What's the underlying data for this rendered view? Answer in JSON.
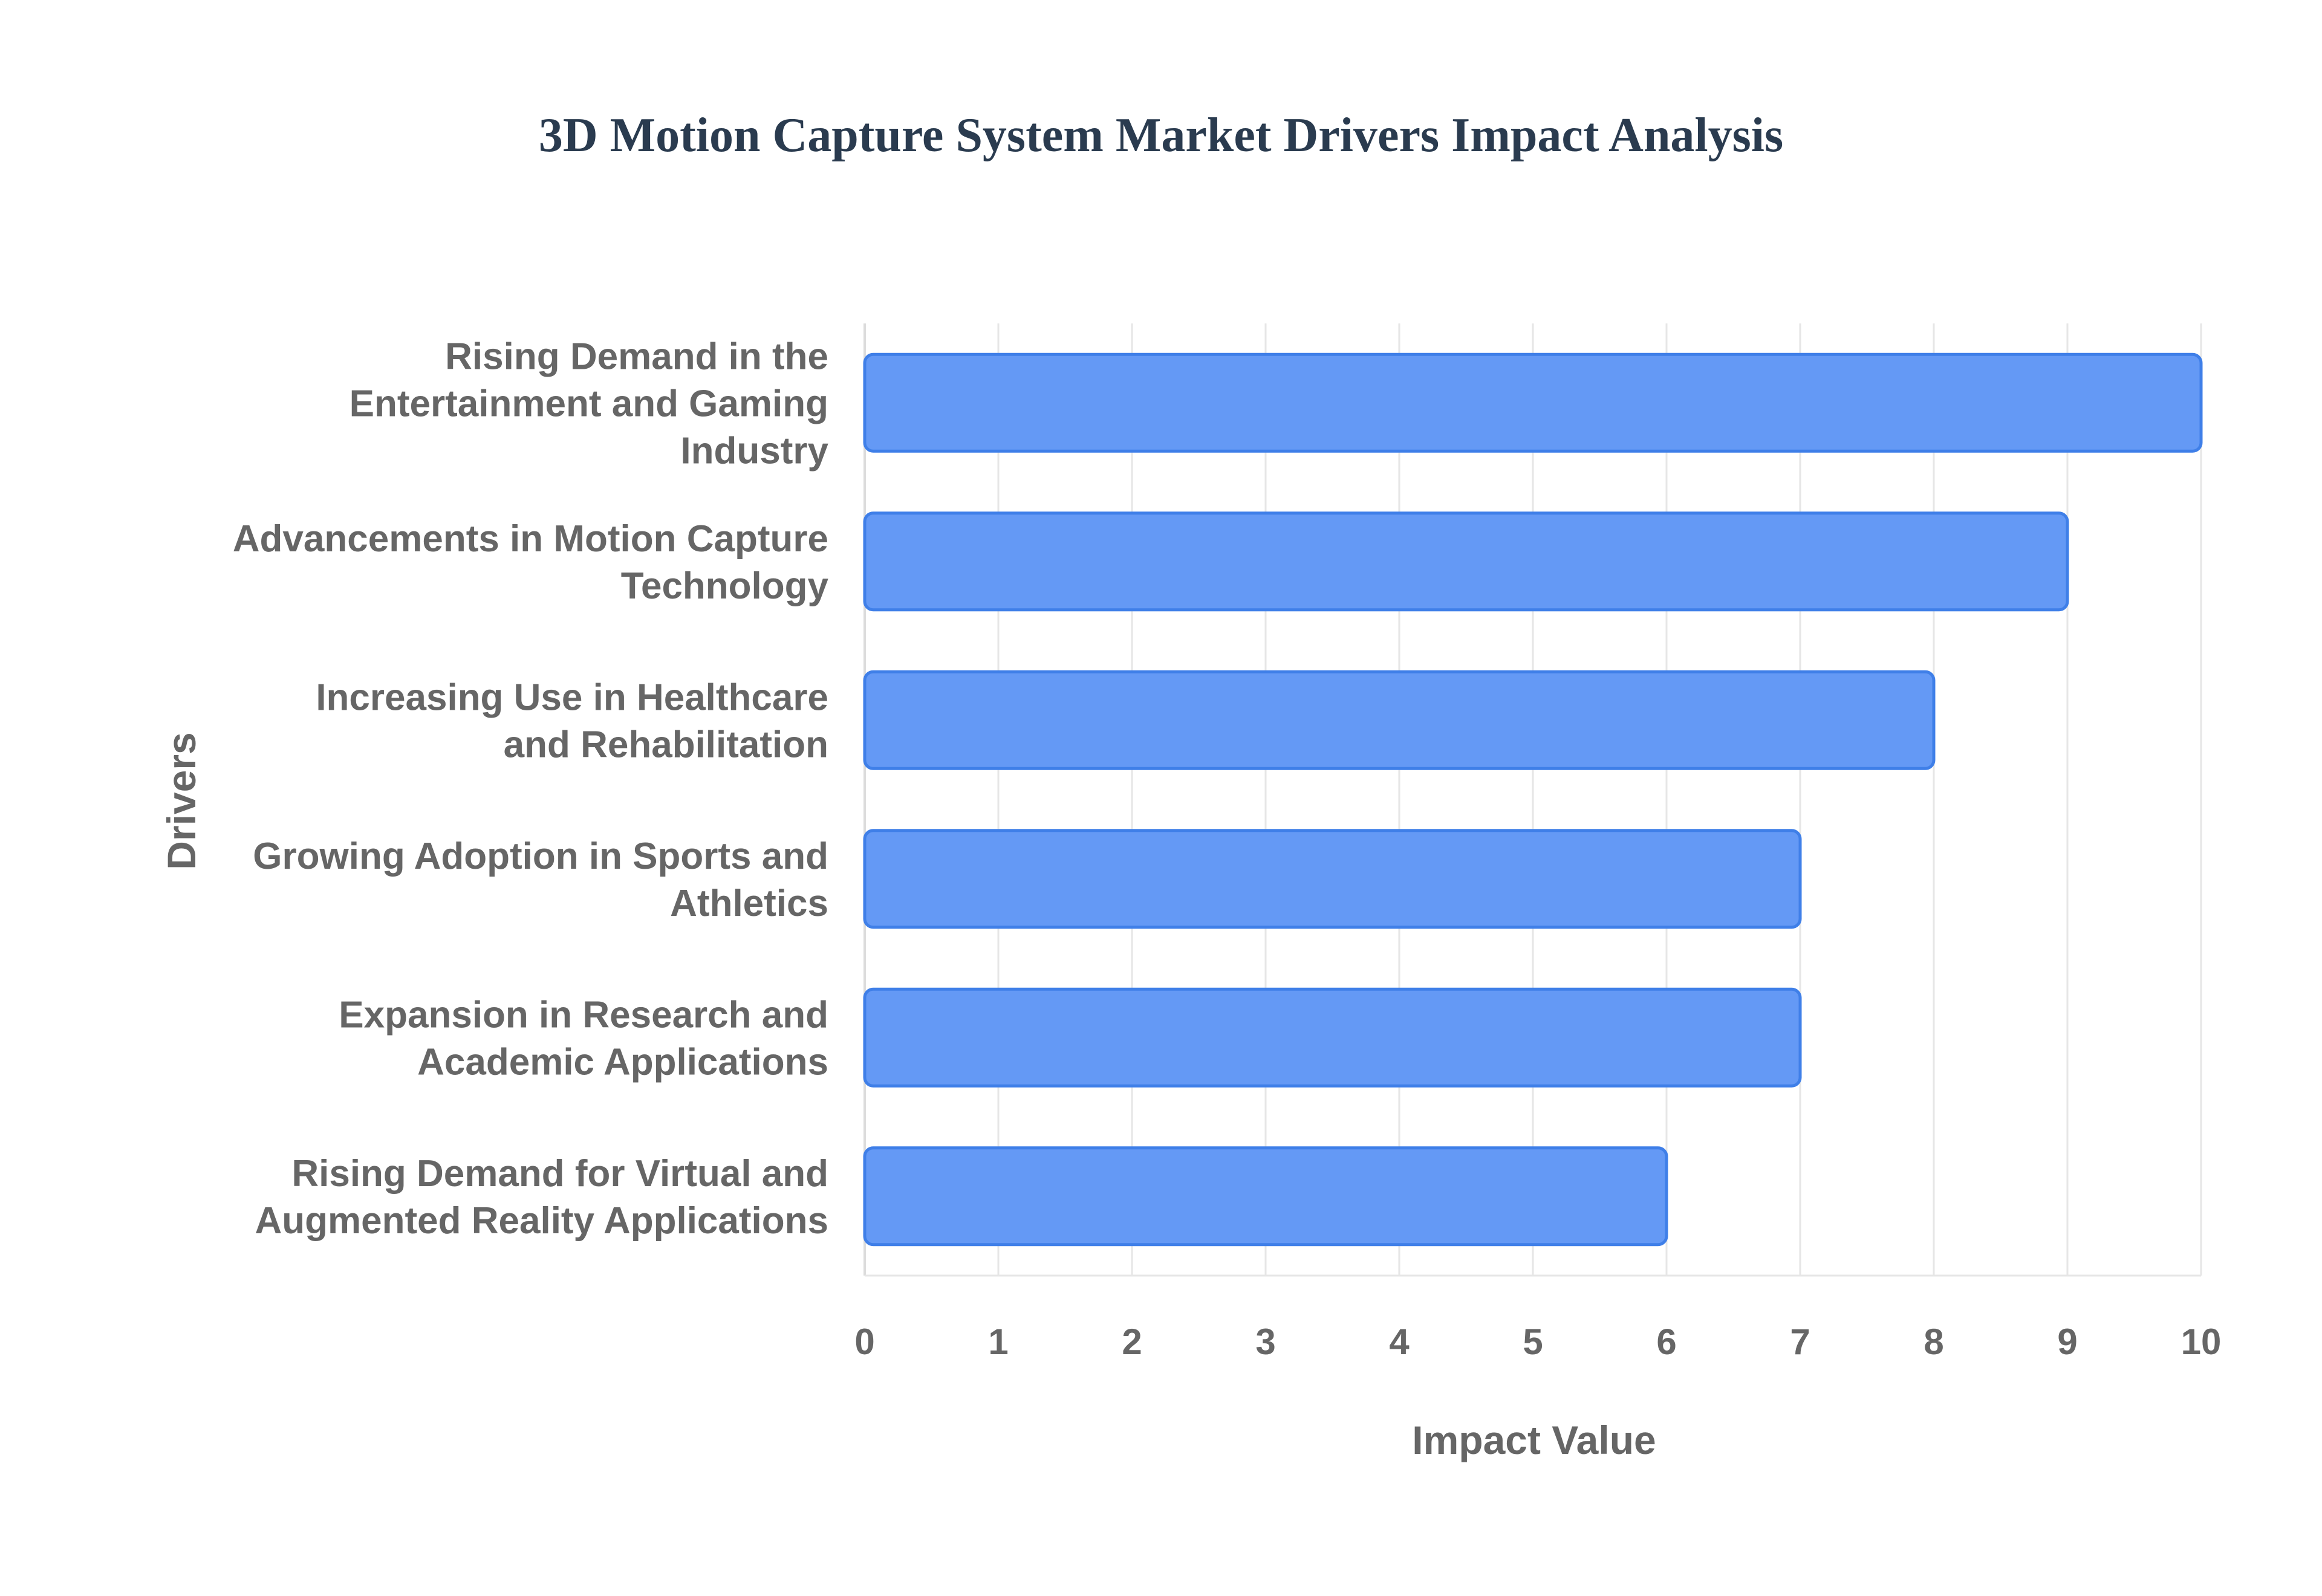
{
  "chart_data": {
    "type": "bar",
    "orientation": "horizontal",
    "title": "3D Motion Capture System Market Drivers Impact Analysis",
    "xlabel": "Impact Value",
    "ylabel": "Drivers",
    "xlim": [
      0,
      10
    ],
    "xticks": [
      "0",
      "1",
      "2",
      "3",
      "4",
      "5",
      "6",
      "7",
      "8",
      "9",
      "10"
    ],
    "grid": true,
    "categories": [
      [
        "Rising Demand in the",
        "Entertainment and Gaming",
        "Industry"
      ],
      [
        "Advancements in Motion Capture",
        "Technology"
      ],
      [
        "Increasing Use in Healthcare",
        "and Rehabilitation"
      ],
      [
        "Growing Adoption in Sports and",
        "Athletics"
      ],
      [
        "Expansion in Research and",
        "Academic Applications"
      ],
      [
        "Rising Demand for Virtual and",
        "Augmented Reality Applications"
      ]
    ],
    "values": [
      10,
      9,
      8,
      7,
      7,
      6
    ],
    "colors": {
      "bar_fill": "#6499f5",
      "bar_stroke": "#3f7fe8",
      "title": "#2a3b4f",
      "label": "#666666",
      "grid": "#e6e6e6",
      "axis": "#dcdcdc"
    }
  }
}
